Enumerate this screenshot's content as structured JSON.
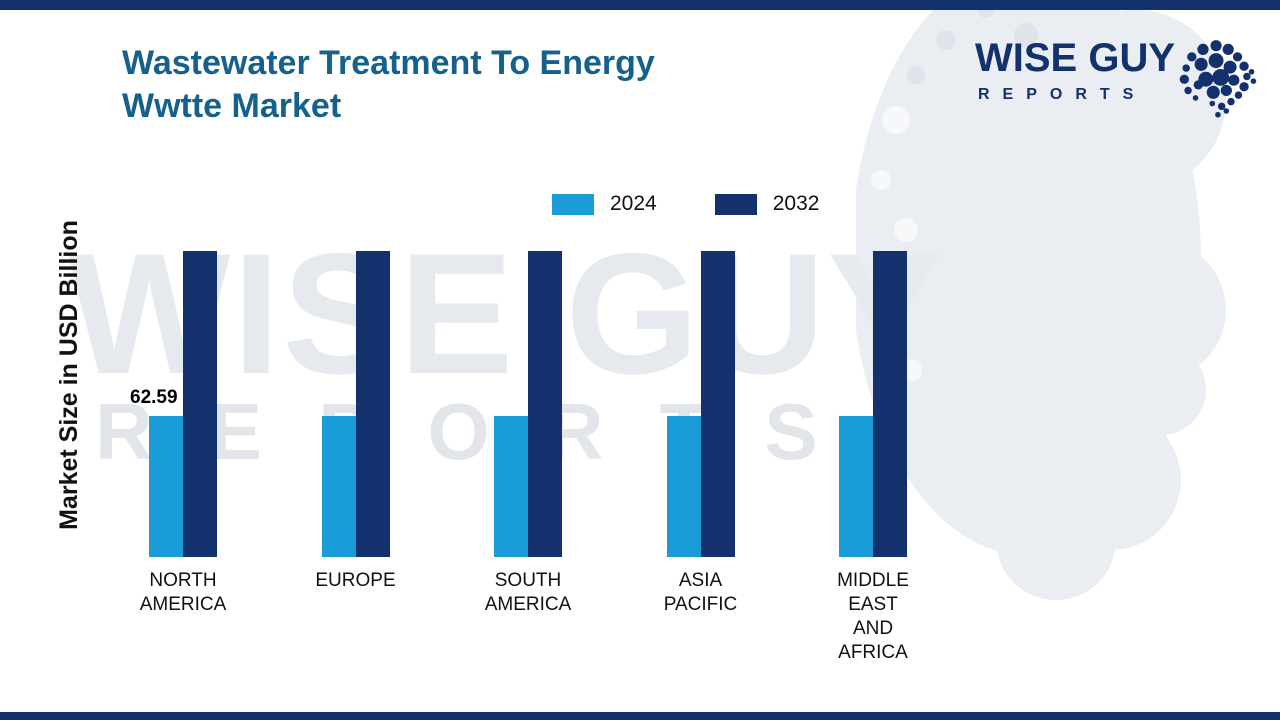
{
  "header": {
    "title_lines": [
      "Wastewater Treatment To Energy",
      "Wwtte Market"
    ],
    "title_color": "#15618c"
  },
  "logo": {
    "brand": "WISE GUY",
    "sub": "REPORTS"
  },
  "watermark": {
    "line1": "WISE GUY",
    "line2": "REPORTS"
  },
  "colors": {
    "brand_navy": "#12316d",
    "brand_blue": "#1a9cd8",
    "title_teal": "#15618c",
    "watermark_gray": "#e6eaee"
  },
  "chart_data": {
    "type": "bar",
    "title": "Wastewater Treatment To Energy Wwtte Market",
    "xlabel": "",
    "ylabel": "Market Size in USD Billion",
    "categories": [
      "NORTH AMERICA",
      "EUROPE",
      "SOUTH AMERICA",
      "ASIA PACIFIC",
      "MIDDLE EAST AND AFRICA"
    ],
    "series": [
      {
        "name": "2024",
        "color": "#1a9cd8",
        "values": [
          62.59,
          62.59,
          62.59,
          62.59,
          62.59
        ]
      },
      {
        "name": "2032",
        "color": "#12316d",
        "values": [
          136,
          136,
          136,
          136,
          136
        ]
      }
    ],
    "data_label": {
      "text": "62.59",
      "series": "2024",
      "category": "NORTH AMERICA"
    },
    "ylim": [
      0,
      140
    ],
    "grid": false,
    "legend_position": "top"
  }
}
